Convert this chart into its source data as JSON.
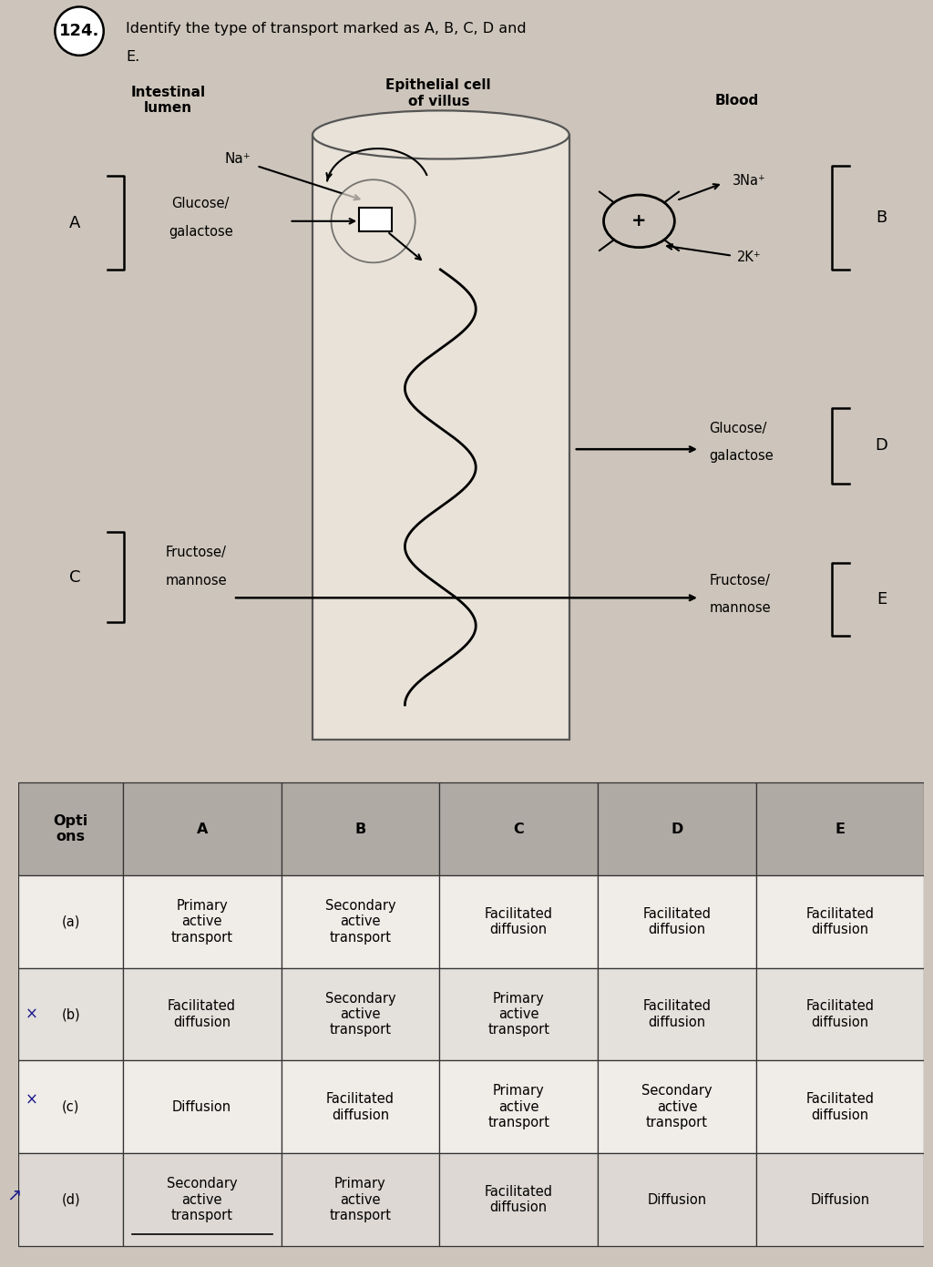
{
  "title_number": "124.",
  "title_text": "Identify the type of transport marked as A, B, C, D and\nE.",
  "bg_color": "#cdc5bb",
  "diagram_bg": "#d8d0c4",
  "cell_bg": "#e8e2d8",
  "cell_border": "#888880",
  "col_header_intestinal": "Intestinal\nlumen",
  "col_header_epithelial": "Epithelial cell\nof villus",
  "col_header_blood": "Blood",
  "na_label": "Na⁺",
  "label_A": "A",
  "label_B": "B",
  "label_C": "C",
  "label_D": "D",
  "label_E": "E",
  "glucose_galactose": "Glucose/\ngalactose",
  "fructose_mannose": "Fructose/\nmannose",
  "glucose_galactose_right": "Glucose/\ngalactose",
  "fructose_mannose_right": "Fructose/\nmannose",
  "na3_label": "3Na⁺",
  "k2_label": "2K⁺",
  "table_header_bg": "#b0aaa4",
  "table_row_bg1": "#f0ece8",
  "table_row_bg2": "#e4e0dc",
  "table_last_row_bg": "#ddd8d4",
  "col0_header": "Opti\nons",
  "col_headers": [
    "A",
    "B",
    "C",
    "D",
    "E"
  ],
  "rows": [
    {
      "option": "(a)",
      "A": "Primary\nactive\ntransport",
      "B": "Secondary\nactive\ntransport",
      "C": "Facilitated\ndiffusion",
      "D": "Facilitated\ndiffusion",
      "E": "Facilitated\ndiffusion"
    },
    {
      "option": "(b)",
      "b_cross": true,
      "A": "Facilitated\ndiffusion",
      "B": "Secondary\nactive\ntransport",
      "C": "Primary\nactive\ntransport",
      "D": "Facilitated\ndiffusion",
      "E": "Facilitated\ndiffusion"
    },
    {
      "option": "(c)",
      "c_cross": true,
      "A": "Diffusion",
      "B": "Facilitated\ndiffusion",
      "C": "Primary\nactive\ntransport",
      "D": "Secondary\nactive\ntransport",
      "E": "Facilitated\ndiffusion"
    },
    {
      "option": "(d)",
      "d_tick": true,
      "A": "Secondary\nactive\ntransport",
      "B": "Primary\nactive\ntransport",
      "C": "Facilitated\ndiffusion",
      "D": "Diffusion",
      "E": "Diffusion"
    }
  ]
}
